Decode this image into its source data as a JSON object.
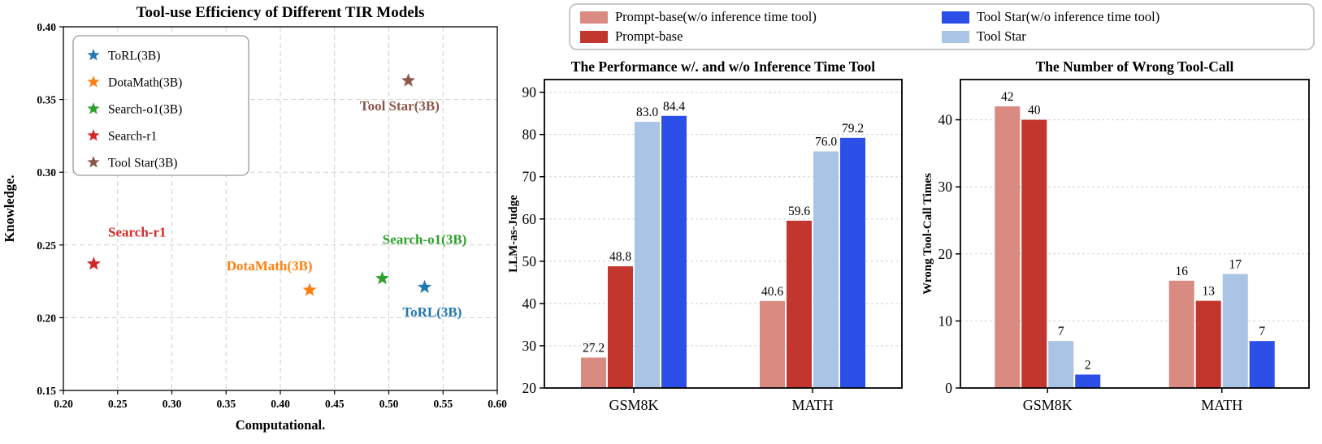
{
  "page": {
    "background": "#ffffff"
  },
  "shared_legend": {
    "border_color": "#c9c9c9",
    "items": [
      {
        "label": "Prompt-base(w/o inference time tool)",
        "color": "#d98b82"
      },
      {
        "label": "Prompt-base",
        "color": "#c3362e"
      },
      {
        "label": "Tool Star(w/o inference time tool)",
        "color": "#2c4fe8"
      },
      {
        "label": "Tool Star",
        "color": "#a9c4e4"
      }
    ]
  },
  "chart_data": [
    {
      "type": "scatter",
      "title": "Tool-use Efficiency of Different TIR Models",
      "xlabel": "Computational.",
      "ylabel": "Knowledge.",
      "xlim": [
        0.2,
        0.6
      ],
      "ylim": [
        0.15,
        0.4
      ],
      "xticks": [
        0.2,
        0.25,
        0.3,
        0.35,
        0.4,
        0.45,
        0.5,
        0.55,
        0.6
      ],
      "yticks": [
        0.15,
        0.2,
        0.25,
        0.3,
        0.35,
        0.4
      ],
      "grid": "dashed",
      "legend_position": "upper-left",
      "marker": "star",
      "points": [
        {
          "label": "ToRL(3B)",
          "x": 0.533,
          "y": 0.221,
          "color": "#1f77b4",
          "label_x": 0.54,
          "label_y": 0.204
        },
        {
          "label": "DotaMath(3B)",
          "x": 0.427,
          "y": 0.219,
          "color": "#ff7f0e",
          "label_x": 0.39,
          "label_y": 0.236
        },
        {
          "label": "Search-o1(3B)",
          "x": 0.494,
          "y": 0.227,
          "color": "#2ca02c",
          "label_x": 0.533,
          "label_y": 0.254
        },
        {
          "label": "Search-r1",
          "x": 0.228,
          "y": 0.237,
          "color": "#d62728",
          "label_x": 0.268,
          "label_y": 0.259
        },
        {
          "label": "Tool Star(3B)",
          "x": 0.518,
          "y": 0.363,
          "color": "#8c564b",
          "label_x": 0.51,
          "label_y": 0.346
        }
      ]
    },
    {
      "type": "bar",
      "title": "The Performance w/. and w/o Inference Time Tool",
      "xlabel": "",
      "ylabel": "LLM-as-Judge",
      "ylim": [
        20,
        93
      ],
      "yticks": [
        20,
        30,
        40,
        50,
        60,
        70,
        80,
        90
      ],
      "grid": "dashed",
      "categories": [
        "GSM8K",
        "MATH"
      ],
      "series": [
        {
          "name": "Prompt-base(w/o inference time tool)",
          "color": "#d98b82",
          "values": [
            27.2,
            40.6
          ],
          "value_labels": [
            "27.2",
            "40.6"
          ]
        },
        {
          "name": "Prompt-base",
          "color": "#c3362e",
          "values": [
            48.8,
            59.6
          ],
          "value_labels": [
            "48.8",
            "59.6"
          ]
        },
        {
          "name": "Tool Star",
          "color": "#a9c4e4",
          "values": [
            83.0,
            76.0
          ],
          "value_labels": [
            "83.0",
            "76.0"
          ]
        },
        {
          "name": "Tool Star(w/o inference time tool)",
          "color": "#2c4fe8",
          "values": [
            84.4,
            79.2
          ],
          "value_labels": [
            "84.4",
            "79.2"
          ]
        }
      ]
    },
    {
      "type": "bar",
      "title": "The Number of Wrong Tool-Call",
      "xlabel": "",
      "ylabel": "Wrong Tool-Call Times",
      "ylim": [
        0,
        46
      ],
      "yticks": [
        0,
        10,
        20,
        30,
        40
      ],
      "grid": "dashed",
      "categories": [
        "GSM8K",
        "MATH"
      ],
      "series": [
        {
          "name": "Prompt-base(w/o inference time tool)",
          "color": "#d98b82",
          "values": [
            42,
            16
          ],
          "value_labels": [
            "42",
            "16"
          ]
        },
        {
          "name": "Prompt-base",
          "color": "#c3362e",
          "values": [
            40,
            13
          ],
          "value_labels": [
            "40",
            "13"
          ]
        },
        {
          "name": "Tool Star",
          "color": "#a9c4e4",
          "values": [
            7,
            17
          ],
          "value_labels": [
            "7",
            "17"
          ]
        },
        {
          "name": "Tool Star(w/o inference time tool)",
          "color": "#2c4fe8",
          "values": [
            2,
            7
          ],
          "value_labels": [
            "2",
            "7"
          ]
        }
      ]
    }
  ]
}
